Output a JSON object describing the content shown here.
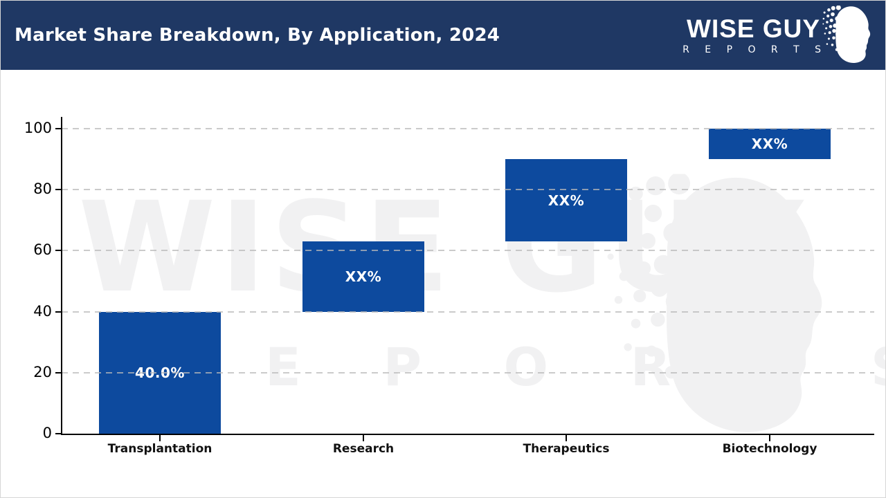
{
  "header": {
    "title": "Market Share Breakdown, By Application, 2024",
    "background_color": "#1f3864",
    "logo": {
      "line1": "WISE GUY",
      "line2": "R E P O R T S",
      "face_icon": "dotted-face-profile"
    }
  },
  "watermark": {
    "line1": "WISE GUY",
    "line2": "R E P O R T S",
    "face_icon": "dotted-face-profile"
  },
  "chart_data": {
    "type": "bar",
    "subtype": "floating-waterfall-segments",
    "title": "Market Share Breakdown, By Application, 2024",
    "categories": [
      "Transplantation",
      "Research",
      "Therapeutics",
      "Biotechnology"
    ],
    "bars": [
      {
        "category": "Transplantation",
        "start": 0,
        "end": 40,
        "label": "40.0%"
      },
      {
        "category": "Research",
        "start": 40,
        "end": 63,
        "label": "XX%"
      },
      {
        "category": "Therapeutics",
        "start": 63,
        "end": 90,
        "label": "XX%"
      },
      {
        "category": "Biotechnology",
        "start": 90,
        "end": 100,
        "label": "XX%"
      }
    ],
    "xlabel": "",
    "ylabel": "",
    "ylim": [
      0,
      104
    ],
    "yticks": [
      0,
      20,
      40,
      60,
      80,
      100
    ],
    "grid": "horizontal-dashed-over-bars",
    "legend": "none",
    "bar_color": "#0d4a9e",
    "bar_label_color": "#ffffff",
    "grid_color": "#c9c9c9",
    "axis_color": "#000000"
  }
}
